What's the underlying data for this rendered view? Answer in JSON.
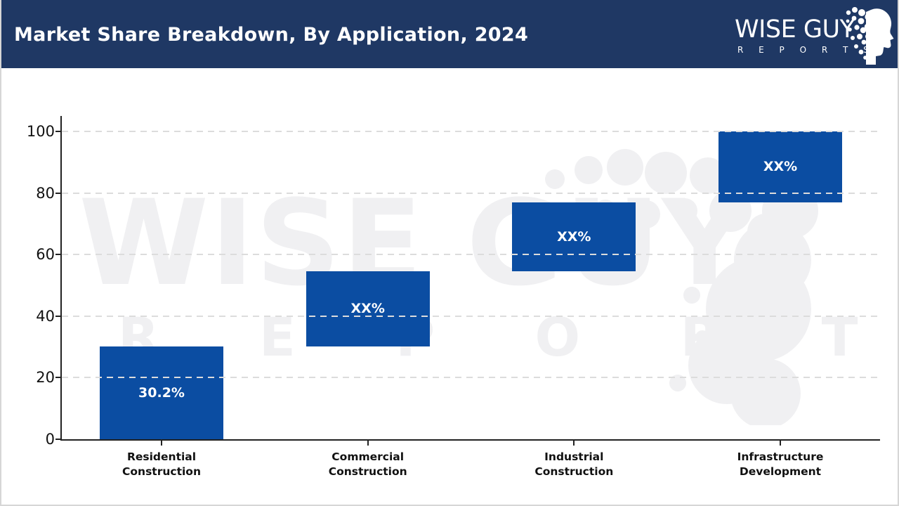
{
  "header": {
    "title": "Market Share Breakdown, By Application, 2024",
    "bg_color": "#1F3864",
    "logo": {
      "line1": "WISE GUY",
      "line2": "R E P O R T S"
    }
  },
  "watermark": {
    "line1": "WISE GUY",
    "line2": "R E P O R T S",
    "color": "#F0F0F2"
  },
  "chart_data": {
    "type": "bar",
    "subtype": "floating-segment-waterfall",
    "title": "Market Share Breakdown, By Application, 2024",
    "categories": [
      [
        "Residential",
        "Construction"
      ],
      [
        "Commercial",
        "Construction"
      ],
      [
        "Industrial",
        "Construction"
      ],
      [
        "Infrastructure",
        "Development"
      ]
    ],
    "segments": [
      {
        "from": 0,
        "to": 30.2,
        "label": "30.2%"
      },
      {
        "from": 30.2,
        "to": 54.5,
        "label": "XX%"
      },
      {
        "from": 54.5,
        "to": 77.0,
        "label": "XX%"
      },
      {
        "from": 77.0,
        "to": 100.0,
        "label": "XX%"
      }
    ],
    "ylim": [
      0,
      100
    ],
    "yticks": [
      0,
      20,
      40,
      60,
      80,
      100
    ],
    "grid": "dashed-horizontal",
    "legend": "none",
    "bar_color": "#0B4DA2",
    "bar_label_color": "#FFFFFF",
    "axis_color": "#222222",
    "grid_color": "#DCDCDC"
  }
}
